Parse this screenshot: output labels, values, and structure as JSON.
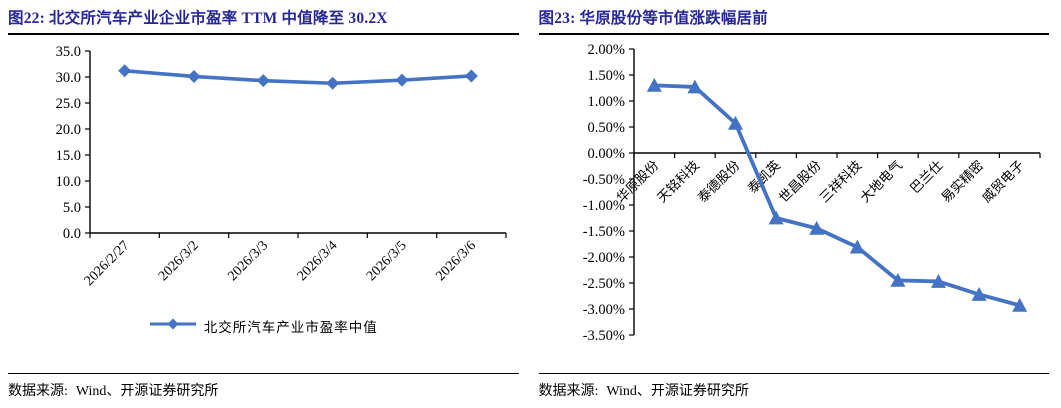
{
  "page": {
    "title_color": "#27279a",
    "series_color": "#4472c4",
    "axis_color": "#000000",
    "background": "#ffffff"
  },
  "figures": [
    {
      "title": "图22: 北交所汽车产业企业市盈率 TTM 中值降至 30.2X",
      "source_label": "数据来源:",
      "source_text": "Wind、开源证券研究所"
    },
    {
      "title": "图23: 华原股份等市值涨跌幅居前",
      "source_label": "数据来源:",
      "source_text": "Wind、开源证券研究所"
    }
  ],
  "chart_data": [
    {
      "type": "line",
      "title": "北交所汽车产业企业市盈率TTM中值降至30.2X",
      "categories": [
        "2026/2/27",
        "2026/3/2",
        "2026/3/3",
        "2026/3/4",
        "2026/3/5",
        "2026/3/6"
      ],
      "series": [
        {
          "name": "北交所汽车产业市盈率中值",
          "values": [
            31.2,
            30.1,
            29.3,
            28.8,
            29.4,
            30.2
          ]
        }
      ],
      "ylim": [
        0,
        35
      ],
      "ytick_step": 5,
      "ytick_format": "fixed1",
      "marker": "diamond",
      "legend_position": "bottom",
      "grid": false,
      "xlabel": "",
      "ylabel": ""
    },
    {
      "type": "line",
      "title": "华原股份等市值涨跌幅居前",
      "categories": [
        "华原股份",
        "天铭科技",
        "泰德股份",
        "泰凯英",
        "世昌股份",
        "三祥科技",
        "大地电气",
        "巴兰仕",
        "易实精密",
        "威贸电子"
      ],
      "series": [
        {
          "name": "市值涨跌幅",
          "values": [
            1.3,
            1.27,
            0.57,
            -1.25,
            -1.45,
            -1.81,
            -2.45,
            -2.47,
            -2.72,
            -2.93
          ]
        }
      ],
      "ylim": [
        -3.5,
        2.0
      ],
      "ytick_step": 0.5,
      "ytick_format": "percent2",
      "marker": "triangle",
      "legend_position": "none",
      "grid": false,
      "xlabel": "",
      "ylabel": ""
    }
  ]
}
